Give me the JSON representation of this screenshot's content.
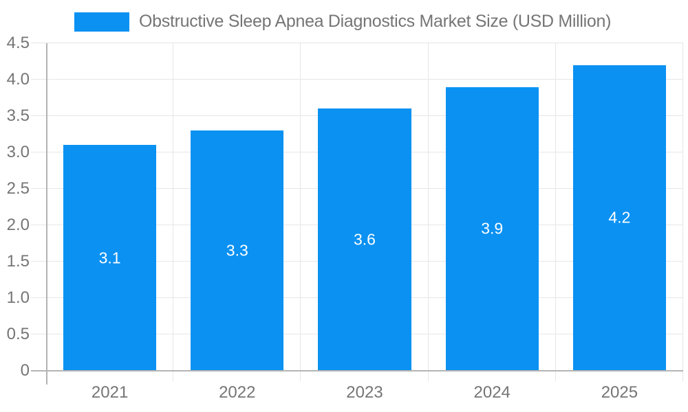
{
  "legend": {
    "label": "Obstructive Sleep Apnea Diagnostics Market Size (USD Million)"
  },
  "chart_data": {
    "type": "bar",
    "title": "Obstructive Sleep Apnea Diagnostics Market Size (USD Million)",
    "categories": [
      "2021",
      "2022",
      "2023",
      "2024",
      "2025"
    ],
    "values": [
      3.1,
      3.3,
      3.6,
      3.9,
      4.2
    ],
    "bar_labels": [
      "3.1",
      "3.3",
      "3.6",
      "3.9",
      "4.2"
    ],
    "xlabel": "",
    "ylabel": "",
    "ylim": [
      0,
      4.5
    ],
    "ytick_values": [
      0,
      0.5,
      1,
      1.5,
      2,
      2.5,
      3,
      3.5,
      4,
      4.5
    ],
    "ytick_labels": [
      "0",
      "0.5",
      "1.0",
      "1.5",
      "2.0",
      "2.5",
      "3.0",
      "3.5",
      "4.0",
      "4.5"
    ],
    "grid": true,
    "legend_position": "top",
    "colors": {
      "bar": "#0a91f2",
      "value_label": "#ffffff",
      "axis_text": "#757575",
      "gridline": "#e6e6e6",
      "axis_line": "#b3b3b3",
      "background": "#ffffff"
    }
  }
}
